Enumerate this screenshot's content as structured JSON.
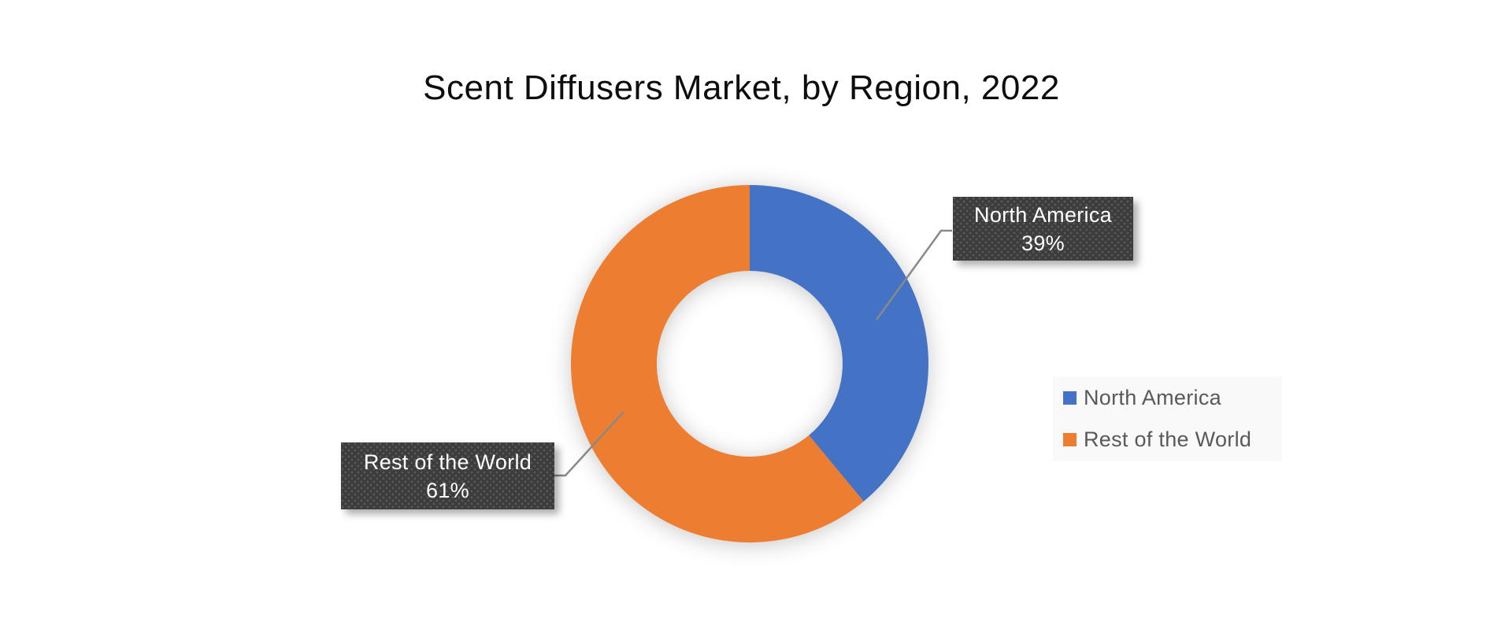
{
  "chart_data": {
    "type": "pie",
    "subtype": "donut",
    "title": "Scent Diffusers Market, by Region, 2022",
    "categories": [
      "North America",
      "Rest of the World"
    ],
    "values": [
      39,
      61
    ],
    "unit": "%",
    "colors": [
      "#4472C4",
      "#ED7D31"
    ],
    "start_angle_deg": 0,
    "direction": "clockwise",
    "donut_hole_ratio": 0.52,
    "legend_position": "right",
    "grid": false,
    "data_labels": [
      {
        "label": "North America",
        "value": "39%"
      },
      {
        "label": "Rest of the World",
        "value": "61%"
      }
    ]
  },
  "legend": {
    "items": [
      {
        "label": "North America",
        "color": "#4472C4"
      },
      {
        "label": "Rest of the World",
        "color": "#ED7D31"
      }
    ]
  },
  "appearance": {
    "background": "#FFFFFF",
    "title_color": "#0D0D0D",
    "callout_bg": "#3C3C3C",
    "callout_text": "#FFFFFF",
    "leader_line_color": "#898989",
    "legend_bg": "#F9F9F9",
    "legend_text": "#595959"
  }
}
